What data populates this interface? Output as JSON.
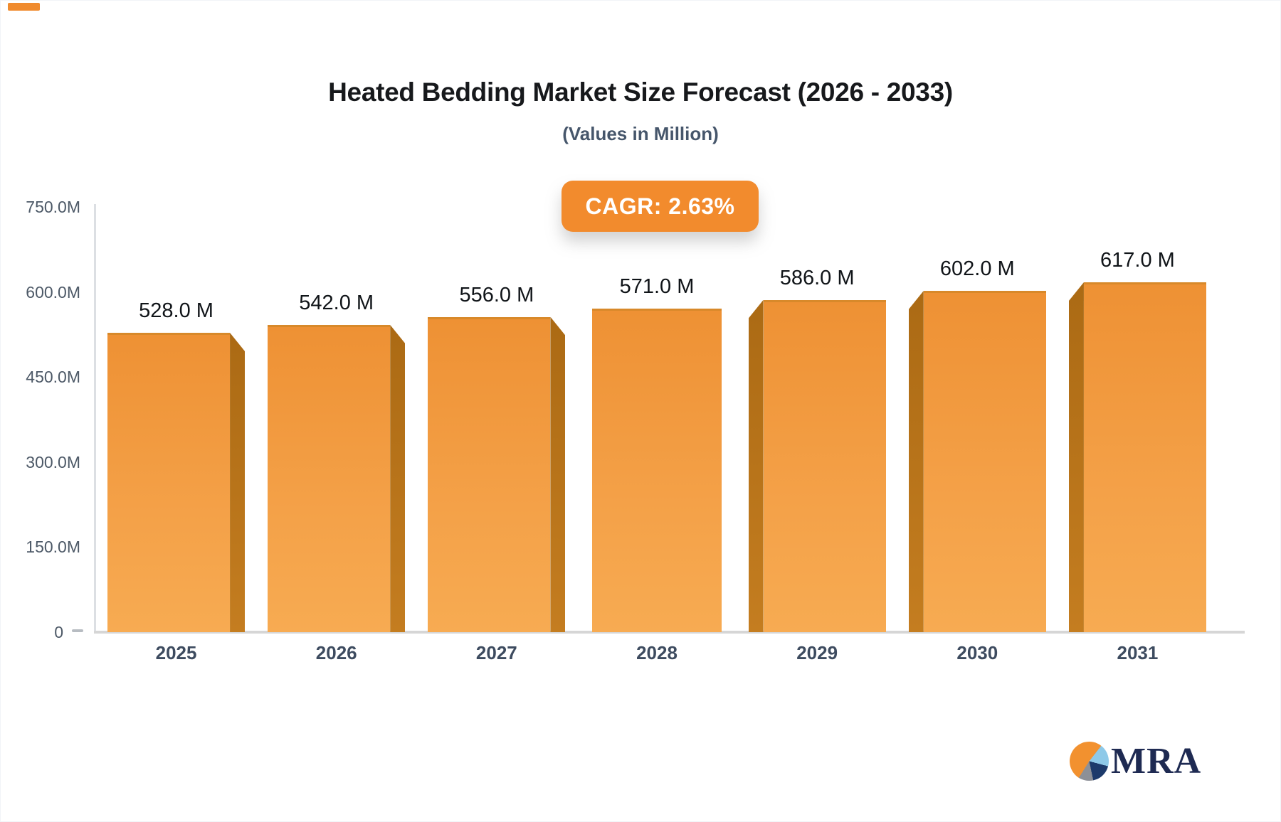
{
  "header": {
    "cagr_badge": "CAGR: 2.63%"
  },
  "chart_data": {
    "type": "bar",
    "title": "Heated Bedding Market Size Forecast (2026 - 2033)",
    "subtitle": "(Values in Million)",
    "categories": [
      "2025",
      "2026",
      "2027",
      "2028",
      "2029",
      "2030",
      "2031"
    ],
    "series": [
      {
        "name": "Market Size (Million)",
        "values": [
          528,
          542,
          556,
          571,
          586,
          602,
          617
        ]
      }
    ],
    "value_labels": [
      "528.0 M",
      "542.0 M",
      "556.0 M",
      "571.0 M",
      "586.0 M",
      "602.0 M",
      "617.0 M"
    ],
    "yticks": [
      {
        "label": "750.0M",
        "value": 750
      },
      {
        "label": "600.0M",
        "value": 600
      },
      {
        "label": "450.0M",
        "value": 450
      },
      {
        "label": "300.0M",
        "value": 300
      },
      {
        "label": "150.0M",
        "value": 150
      },
      {
        "label": "0",
        "value": 0
      }
    ],
    "ylim": [
      0,
      750
    ],
    "xlabel": "",
    "ylabel": "",
    "grid": false,
    "legend": false,
    "bar_color_top": "#ee9134",
    "bar_color_bottom": "#f7ab52",
    "bar_side_color": "#b9701b",
    "badge_color": "#f28b2d"
  },
  "logo": {
    "text": "MRA",
    "text_color": "#1e2a52",
    "pie_colors": {
      "orange": "#f2912f",
      "light_blue": "#8ec9e8",
      "navy": "#1d3a6b",
      "gray": "#8d9097"
    }
  }
}
